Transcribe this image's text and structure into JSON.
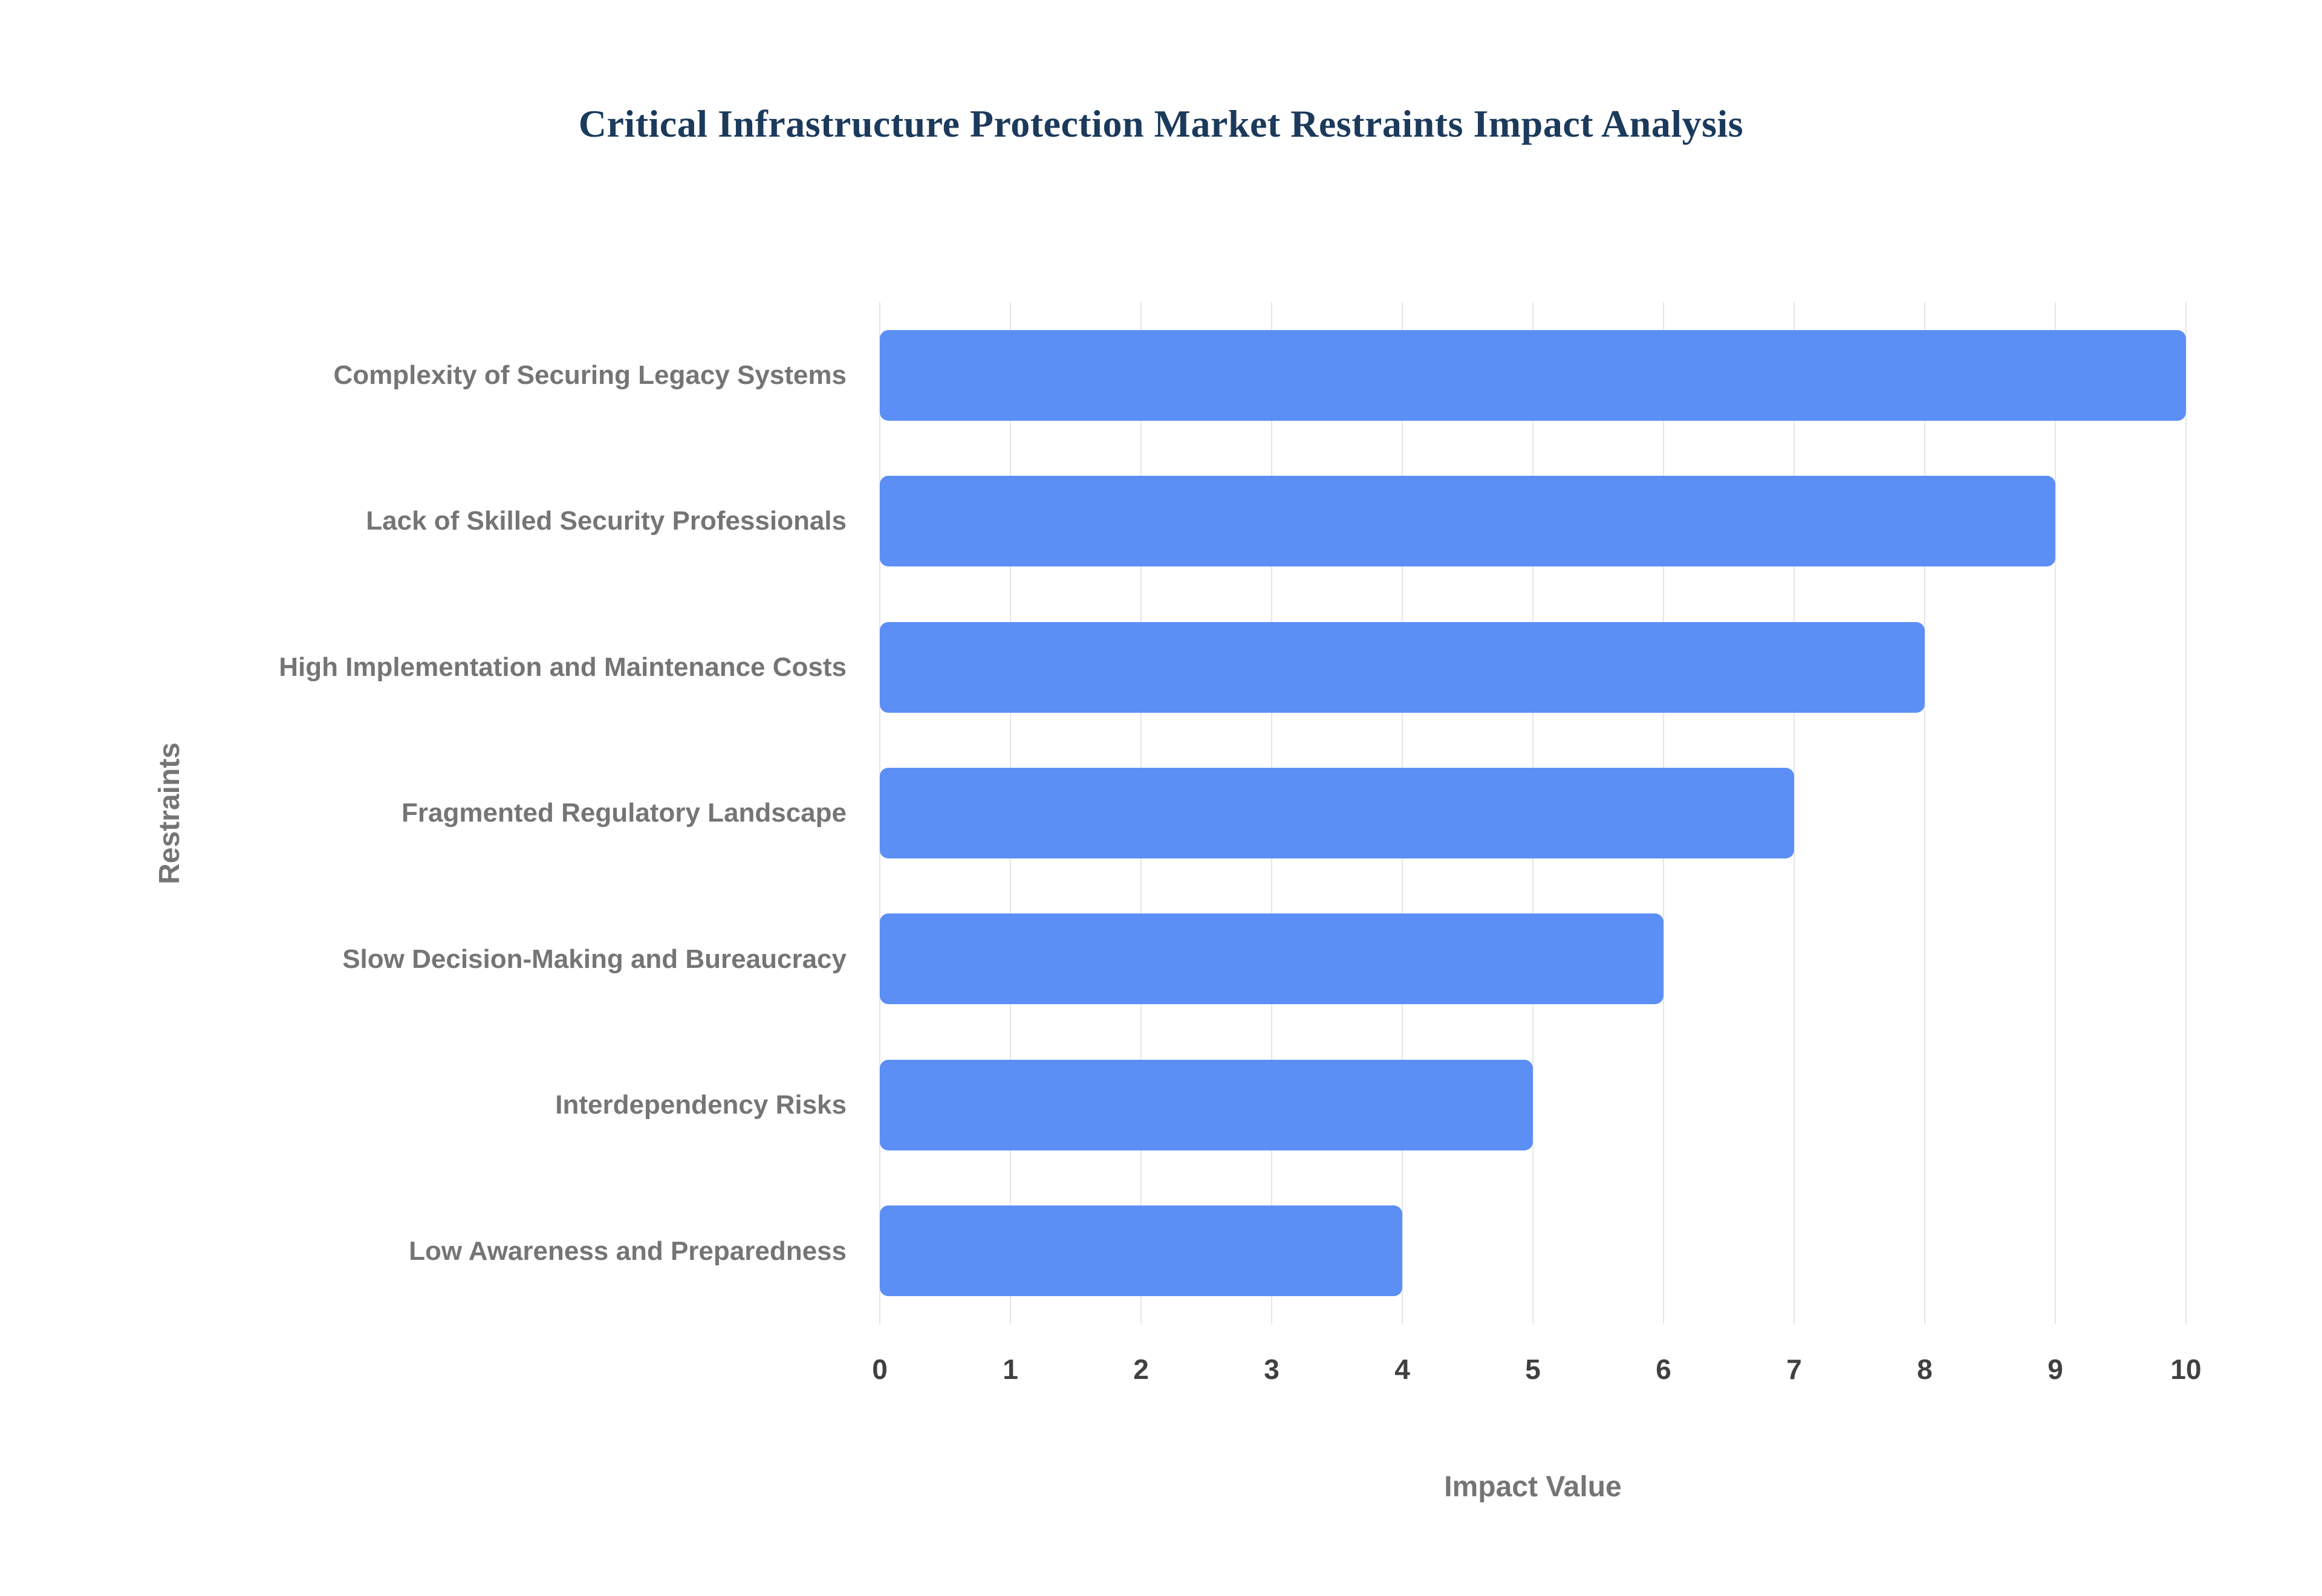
{
  "chart_data": {
    "type": "bar",
    "orientation": "horizontal",
    "title": "Critical Infrastructure Protection Market Restraints Impact Analysis",
    "categories": [
      "Complexity of Securing Legacy Systems",
      "Lack of Skilled Security Professionals",
      "High Implementation and Maintenance Costs",
      "Fragmented Regulatory Landscape",
      "Slow Decision-Making and Bureaucracy",
      "Interdependency Risks",
      "Low Awareness and Preparedness"
    ],
    "values": [
      10,
      9,
      8,
      7,
      6,
      5,
      4
    ],
    "xlabel": "Impact Value",
    "ylabel": "Restraints",
    "xlim": [
      0,
      10
    ],
    "xticks": [
      0,
      1,
      2,
      3,
      4,
      5,
      6,
      7,
      8,
      9,
      10
    ],
    "grid": "vertical",
    "legend": "none",
    "colors": {
      "bar": "#5b8ff5",
      "title": "#1b3a5c",
      "axis_title": "#757575",
      "category_label": "#757575",
      "tick_label": "#404040",
      "gridline": "#e6e6e6",
      "background": "#ffffff"
    }
  }
}
